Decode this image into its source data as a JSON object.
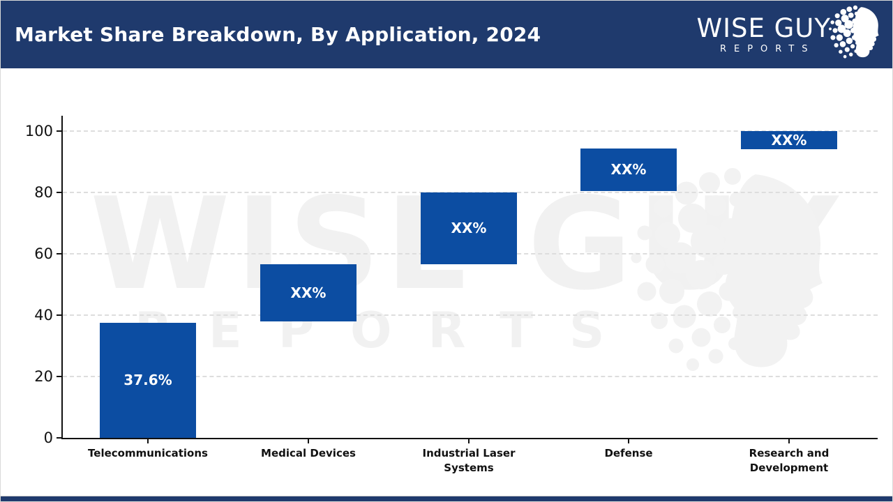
{
  "header": {
    "title": "Market Share Breakdown, By Application, 2024",
    "logo_line1": "WISE GUY",
    "logo_line2": "REPORTS"
  },
  "watermark": {
    "line1": "WISE GUY",
    "line2": "REPORTS"
  },
  "chart_data": {
    "type": "bar",
    "subtype": "waterfall",
    "title": "Market Share Breakdown, By Application, 2024",
    "categories": [
      "Telecommunications",
      "Medical Devices",
      "Industrial Laser\nSystems",
      "Defense",
      "Research and\nDevelopment"
    ],
    "bars": [
      {
        "category": "Telecommunications",
        "start": 0,
        "end": 37.6,
        "label": "37.6%"
      },
      {
        "category": "Medical Devices",
        "start": 38,
        "end": 56.6,
        "label": "XX%"
      },
      {
        "category": "Industrial Laser Systems",
        "start": 56.6,
        "end": 80,
        "label": "XX%"
      },
      {
        "category": "Defense",
        "start": 80.5,
        "end": 94.3,
        "label": "XX%"
      },
      {
        "category": "Research and Development",
        "start": 94.1,
        "end": 100,
        "label": "XX%"
      }
    ],
    "xlabel": "",
    "ylabel": "",
    "yticks": [
      0,
      20,
      40,
      60,
      80,
      100
    ],
    "ylim": [
      0,
      105
    ],
    "grid": "horizontal-dashed",
    "legend": "none",
    "bar_color": "#0C4DA2",
    "bar_label_color": "#FFFFFF"
  },
  "colors": {
    "header_bg": "#1F3A6D",
    "footer_bg": "#1F3A6D",
    "bar": "#0C4DA2",
    "grid": "#DDDDDD",
    "axis": "#111111",
    "watermark": "#F1F1F1",
    "page_bg": "#FFFFFF"
  }
}
